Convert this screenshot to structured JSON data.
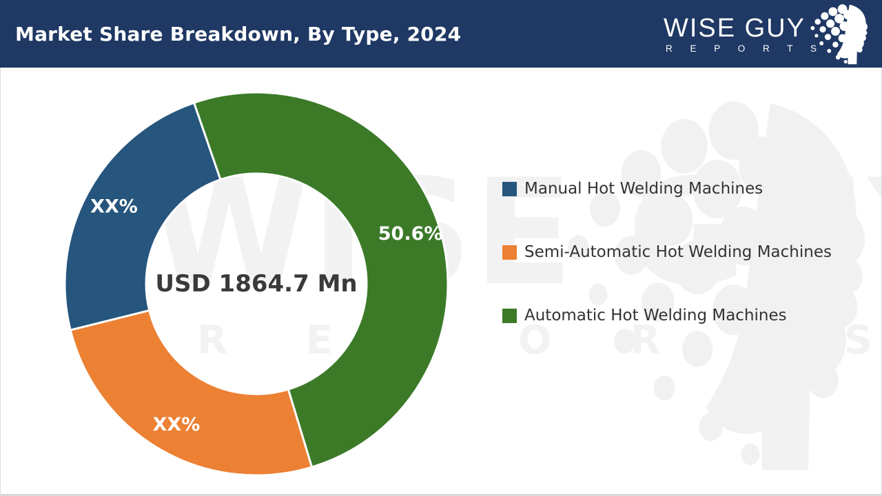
{
  "header": {
    "title": "Market Share Breakdown, By Type, 2024",
    "bg_color": "#1F3864",
    "logo": {
      "line1": "WISE GUY",
      "line2": "R E P O R T S"
    }
  },
  "watermark": {
    "line1": "WISE GUY",
    "line2": "R E P O R T S"
  },
  "chart_data": {
    "type": "donut",
    "title": "Market Share Breakdown, By Type, 2024",
    "center_label": "USD 1864.7 Mn",
    "start_angle_deg": -19,
    "slice_gap_color": "#ffffff",
    "slices": [
      {
        "label": "Automatic Hot Welding Machines",
        "pct": 50.6,
        "display": "50.6%",
        "color": "#3C7A28"
      },
      {
        "label": "Semi-Automatic Hot Welding Machines",
        "pct": 25.8,
        "display": "XX%",
        "color": "#EC8033"
      },
      {
        "label": "Manual Hot Welding Machines",
        "pct": 23.6,
        "display": "XX%",
        "color": "#26557D"
      }
    ],
    "legend": {
      "position": "right",
      "items": [
        {
          "label": "Manual Hot Welding Machines",
          "color": "#26557D"
        },
        {
          "label": "Semi-Automatic Hot Welding Machines",
          "color": "#EC8033"
        },
        {
          "label": "Automatic Hot Welding Machines",
          "color": "#3C7A28"
        }
      ]
    }
  }
}
